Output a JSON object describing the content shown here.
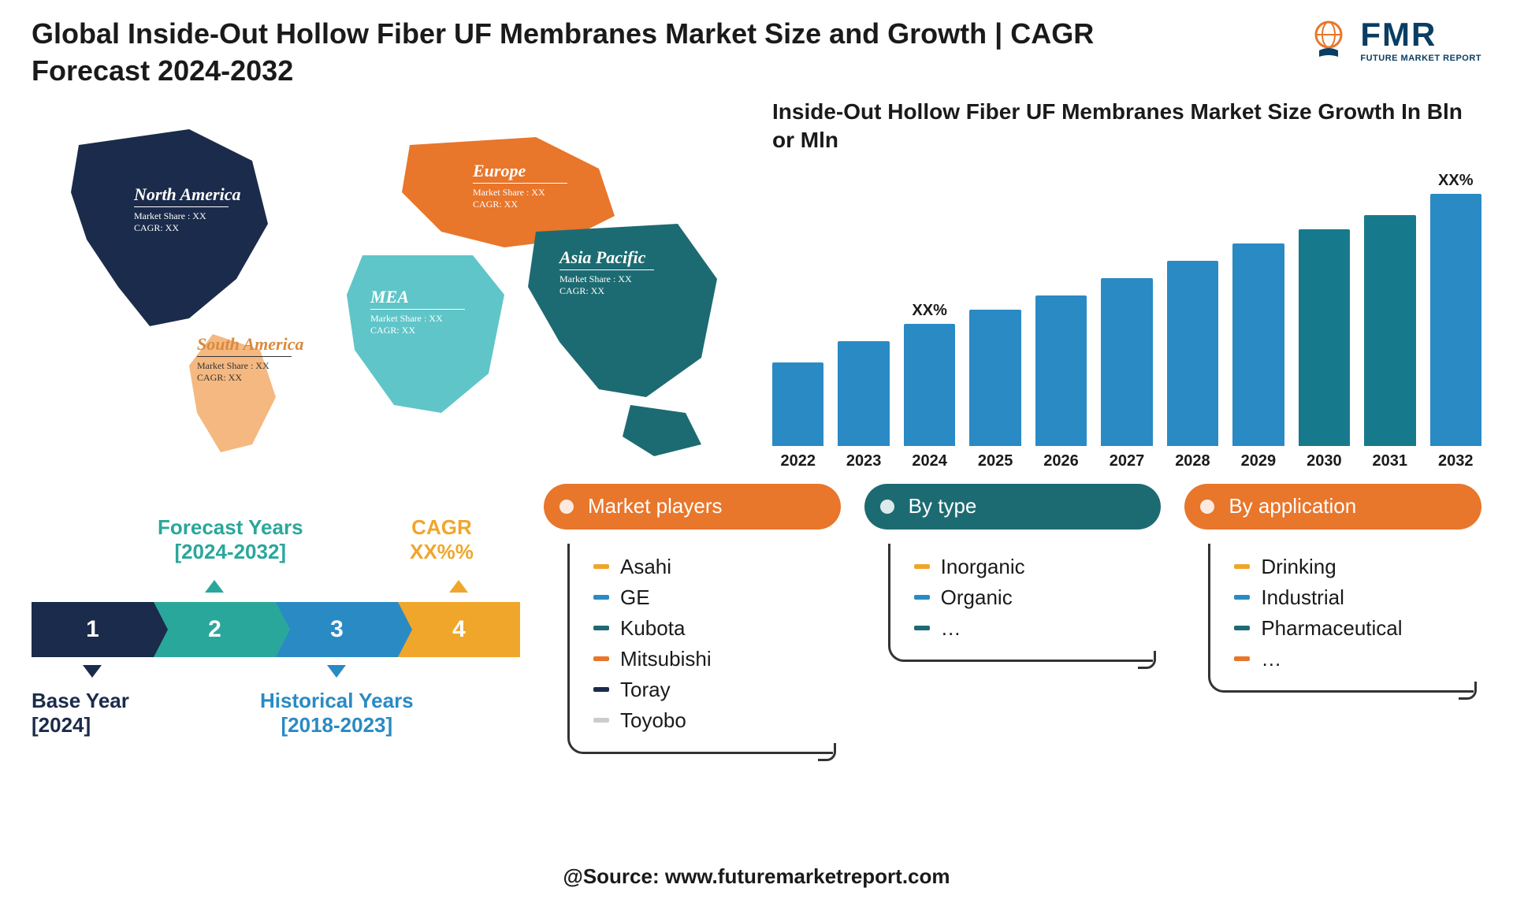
{
  "title": "Global Inside-Out Hollow Fiber UF Membranes Market Size and Growth | CAGR Forecast 2024-2032",
  "logo": {
    "fmr": "FMR",
    "sub": "FUTURE MARKET REPORT"
  },
  "chart": {
    "title": "Inside-Out Hollow Fiber UF Membranes Market Size Growth In Bln or Mln",
    "type": "bar",
    "years": [
      "2022",
      "2023",
      "2024",
      "2025",
      "2026",
      "2027",
      "2028",
      "2029",
      "2030",
      "2031",
      "2032"
    ],
    "values": [
      120,
      150,
      175,
      195,
      215,
      240,
      265,
      290,
      310,
      330,
      360
    ],
    "max": 360,
    "bar_colors": [
      "#2a8ac4",
      "#2a8ac4",
      "#2a8ac4",
      "#2a8ac4",
      "#2a8ac4",
      "#2a8ac4",
      "#2a8ac4",
      "#2a8ac4",
      "#167a8c",
      "#167a8c",
      "#2a8ac4"
    ],
    "annotations": [
      {
        "index": 2,
        "text": "XX%"
      },
      {
        "index": 10,
        "text": "XX%"
      }
    ],
    "background": "#ffffff"
  },
  "map": {
    "regions": [
      {
        "name": "North America",
        "color": "#1b2b4b",
        "share": "Market Share : XX",
        "cagr": "CAGR: XX"
      },
      {
        "name": "South America",
        "color": "#f5b880",
        "share": "Market Share : XX",
        "cagr": "CAGR: XX"
      },
      {
        "name": "Europe",
        "color": "#e8762b",
        "share": "Market Share : XX",
        "cagr": "CAGR: XX"
      },
      {
        "name": "MEA",
        "color": "#5fc5c8",
        "share": "Market Share : XX",
        "cagr": "CAGR: XX"
      },
      {
        "name": "Asia Pacific",
        "color": "#1d6b72",
        "share": "Market Share : XX",
        "cagr": "CAGR: XX"
      }
    ]
  },
  "timeline": {
    "forecast_label": "Forecast Years",
    "forecast_range": "[2024-2032]",
    "cagr_label": "CAGR",
    "cagr_value": "XX%%",
    "base_label": "Base Year",
    "base_range": "[2024]",
    "hist_label": "Historical Years",
    "hist_range": "[2018-2023]",
    "steps": [
      {
        "num": "1",
        "color": "#1b2b4b"
      },
      {
        "num": "2",
        "color": "#2aa79b"
      },
      {
        "num": "3",
        "color": "#2a8ac4"
      },
      {
        "num": "4",
        "color": "#f0a62b"
      }
    ],
    "colors": {
      "forecast": "#2aa79b",
      "cagr": "#f0a62b",
      "base": "#1b2b4b",
      "hist": "#2a8ac4"
    }
  },
  "categories": [
    {
      "header": "Market players",
      "header_color": "#e8762b",
      "items": [
        {
          "label": "Asahi",
          "bullet": "#f0a62b"
        },
        {
          "label": "GE",
          "bullet": "#2a8ac4"
        },
        {
          "label": "Kubota",
          "bullet": "#1d6b72"
        },
        {
          "label": "Mitsubishi",
          "bullet": "#e8762b"
        },
        {
          "label": "Toray",
          "bullet": "#1b2b4b"
        },
        {
          "label": "Toyobo",
          "bullet": "#cccccc"
        }
      ]
    },
    {
      "header": "By type",
      "header_color": "#1d6b72",
      "items": [
        {
          "label": "Inorganic",
          "bullet": "#f0a62b"
        },
        {
          "label": "Organic",
          "bullet": "#2a8ac4"
        },
        {
          "label": "…",
          "bullet": "#1d6b72"
        }
      ]
    },
    {
      "header": "By application",
      "header_color": "#e8762b",
      "items": [
        {
          "label": "Drinking",
          "bullet": "#f0a62b"
        },
        {
          "label": "Industrial",
          "bullet": "#2a8ac4"
        },
        {
          "label": "Pharmaceutical",
          "bullet": "#1d6b72"
        },
        {
          "label": "…",
          "bullet": "#e8762b"
        }
      ]
    }
  ],
  "source": "@Source: www.futuremarketreport.com"
}
